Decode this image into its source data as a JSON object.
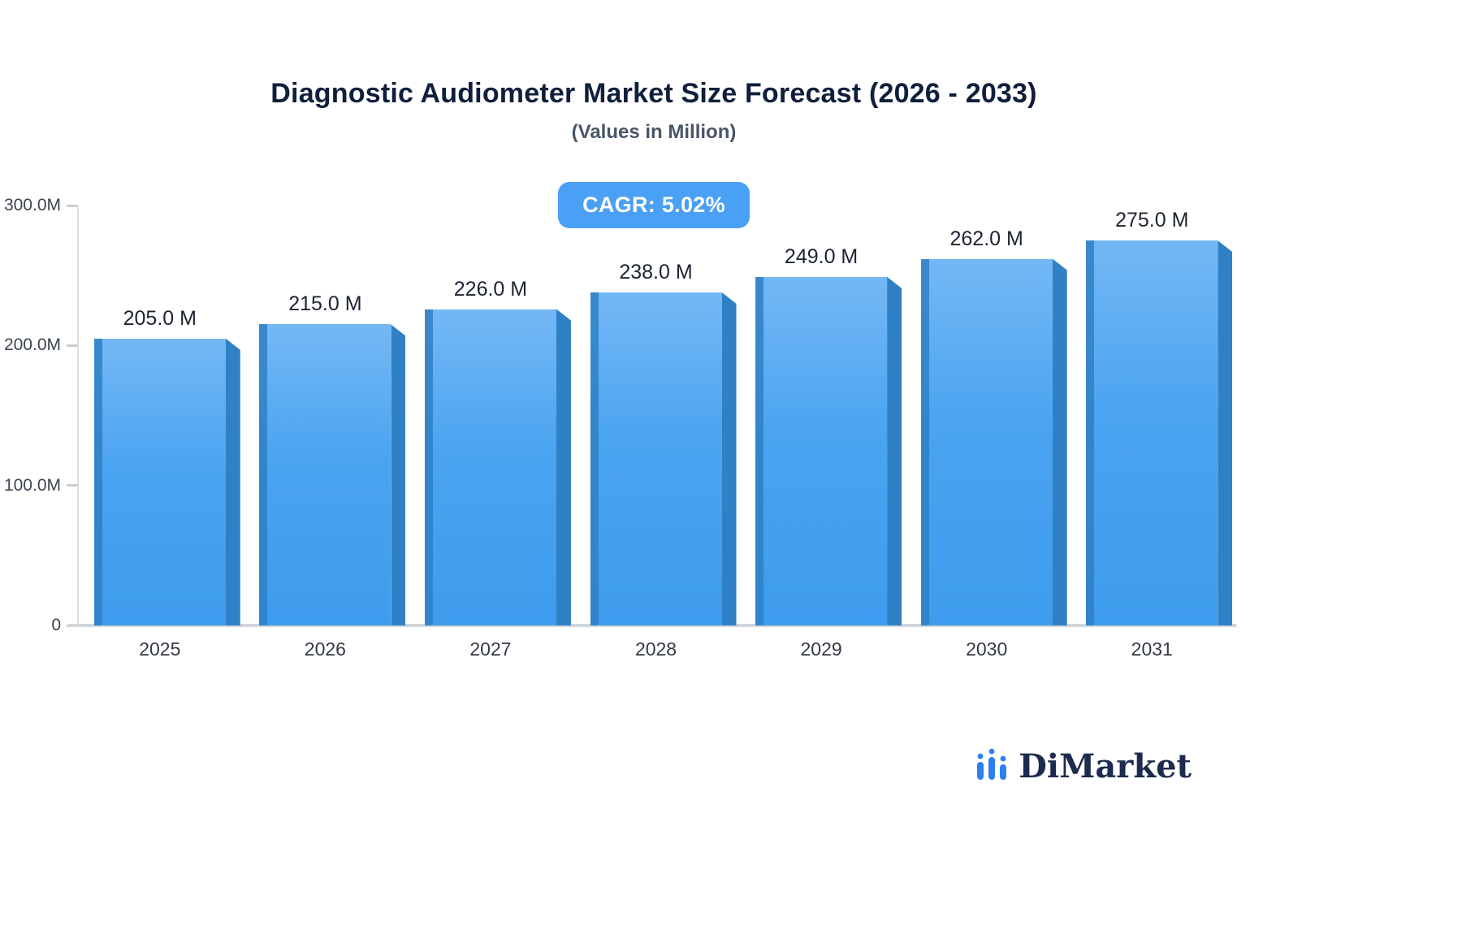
{
  "header": {
    "title": "Diagnostic Audiometer Market Size Forecast (2026 - 2033)",
    "subtitle": "(Values in Million)"
  },
  "badge": {
    "cagr_label": "CAGR: 5.02%"
  },
  "logo": {
    "text": "DiMarket"
  },
  "chart_data": {
    "type": "bar",
    "title": "Diagnostic Audiometer Market Size Forecast (2026 - 2033)",
    "subtitle": "(Values in Million)",
    "categories": [
      "2025",
      "2026",
      "2027",
      "2028",
      "2029",
      "2030",
      "2031"
    ],
    "values": [
      205,
      215,
      226,
      238,
      249,
      262,
      275
    ],
    "value_labels": [
      "205.0 M",
      "215.0 M",
      "226.0 M",
      "238.0 M",
      "249.0 M",
      "262.0 M",
      "275.0 M"
    ],
    "xlabel": "",
    "ylabel": "",
    "ylim": [
      0,
      300
    ],
    "y_ticks": [
      {
        "value": 300,
        "label": "300.0M"
      },
      {
        "value": 200,
        "label": "200.0M"
      },
      {
        "value": 100,
        "label": "100.0M"
      },
      {
        "value": 0,
        "label": "0"
      }
    ],
    "grid": false,
    "legend": "none",
    "annotation": "CAGR: 5.02%",
    "colors": {
      "bar_face_top": "#74b8f5",
      "bar_face_bottom": "#3e9cee",
      "bar_side": "#2f80c4",
      "badge_bg": "#4aa0f4",
      "title_text": "#101f3c",
      "logo_accent": "#2d7ff2"
    }
  }
}
